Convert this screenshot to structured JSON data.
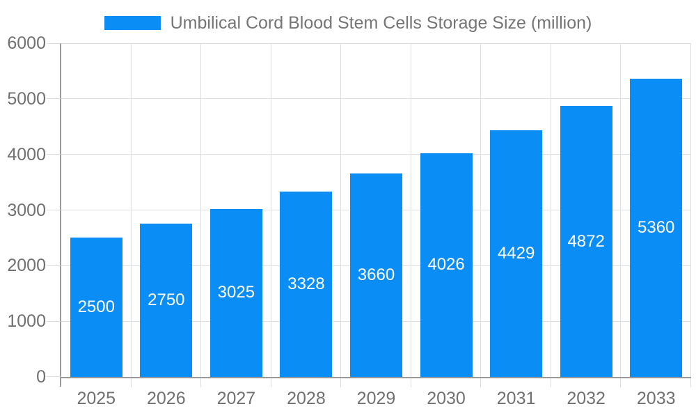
{
  "legend": {
    "label": "Umbilical Cord Blood Stem Cells Storage Size (million)"
  },
  "chart_data": {
    "type": "bar",
    "title": "Umbilical Cord Blood Stem Cells Storage Size (million)",
    "categories": [
      "2025",
      "2026",
      "2027",
      "2028",
      "2029",
      "2030",
      "2031",
      "2032",
      "2033"
    ],
    "values": [
      2500,
      2750,
      3025,
      3328,
      3660,
      4026,
      4429,
      4872,
      5360
    ],
    "xlabel": "",
    "ylabel": "",
    "ylim": [
      0,
      6000
    ],
    "yticks": [
      0,
      1000,
      2000,
      3000,
      4000,
      5000,
      6000
    ],
    "grid": true,
    "legend_position": "top-center",
    "value_labels": "inside-center-white",
    "colors": {
      "bar": "#0a8df5",
      "bar_value_text": "#ffffff",
      "axis_line": "#999999",
      "grid_line": "#dedede",
      "axis_text": "#707070",
      "legend_text": "#757575",
      "background": "#ffffff"
    }
  }
}
